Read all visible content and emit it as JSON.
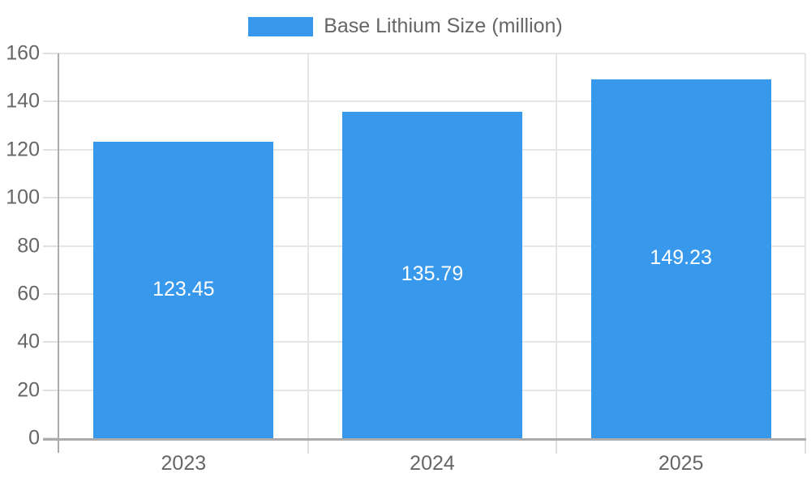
{
  "chart_data": {
    "type": "bar",
    "title": "",
    "categories": [
      "2023",
      "2024",
      "2025"
    ],
    "series": [
      {
        "name": "Base Lithium Size (million)",
        "color": "#3899EC",
        "values": [
          123.45,
          135.79,
          149.23
        ]
      }
    ],
    "value_labels": [
      "123.45",
      "135.79",
      "149.23"
    ],
    "xlabel": "",
    "ylabel": "",
    "ylim": [
      0,
      160
    ],
    "yticks": [
      0,
      20,
      40,
      60,
      80,
      100,
      120,
      140,
      160
    ],
    "grid": true,
    "legend_position": "top",
    "colors": {
      "bar": "#3899EC",
      "bar_label": "#FFFFFF",
      "axis_label": "#666666",
      "legend_text": "#666666",
      "gridline": "#E6E6E6",
      "tick": "#E0E0E0",
      "axis_line": "#ABABAB",
      "background": "#FFFFFF"
    }
  }
}
